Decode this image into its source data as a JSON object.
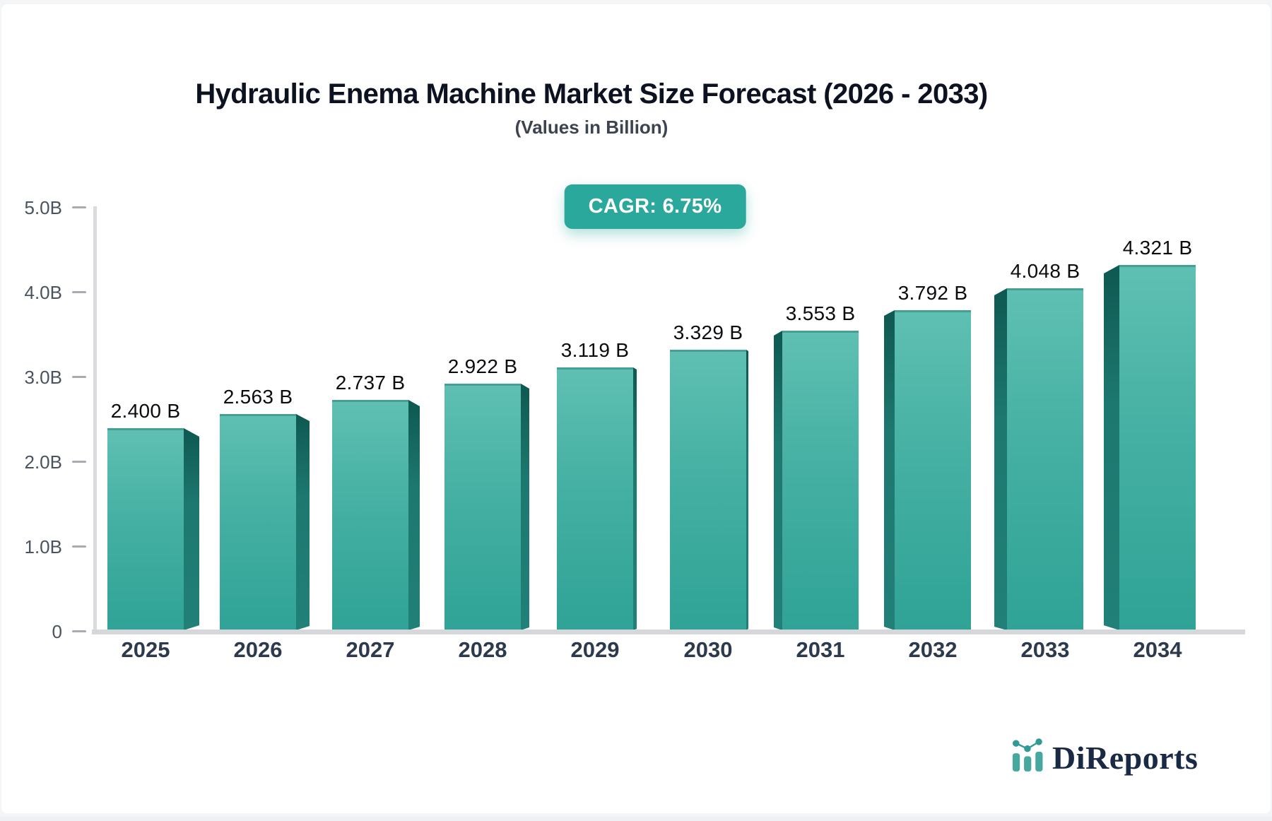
{
  "chart_data": {
    "type": "bar",
    "title": "Hydraulic Enema Machine Market Size Forecast (2026 - 2033)",
    "subtitle": "(Values in Billion)",
    "cagr_label": "CAGR: 6.75%",
    "unit": "Billion",
    "categories": [
      "2025",
      "2026",
      "2027",
      "2028",
      "2029",
      "2030",
      "2031",
      "2032",
      "2033",
      "2034"
    ],
    "values": [
      2.4,
      2.563,
      2.737,
      2.922,
      3.119,
      3.329,
      3.553,
      3.792,
      4.048,
      4.321
    ],
    "value_labels": [
      "2.400 B",
      "2.563 B",
      "2.737 B",
      "2.922 B",
      "3.119 B",
      "3.329 B",
      "3.553 B",
      "3.792 B",
      "4.048 B",
      "4.321 B"
    ],
    "ylim": [
      0,
      5
    ],
    "y_ticks": [
      {
        "label": "5.0B",
        "value": 5
      },
      {
        "label": "4.0B",
        "value": 4
      },
      {
        "label": "3.0B",
        "value": 3
      },
      {
        "label": "2.0B",
        "value": 2
      },
      {
        "label": "1.0B",
        "value": 1
      },
      {
        "label": "0",
        "value": 0
      }
    ],
    "grid": false,
    "legend": false,
    "bar_color": "#35A99C",
    "bar_side_color": "#1D786F",
    "accent_color": "#2BA89C",
    "axis_color": "#D5D7DB"
  },
  "footer": {
    "brand": "DiReports"
  }
}
